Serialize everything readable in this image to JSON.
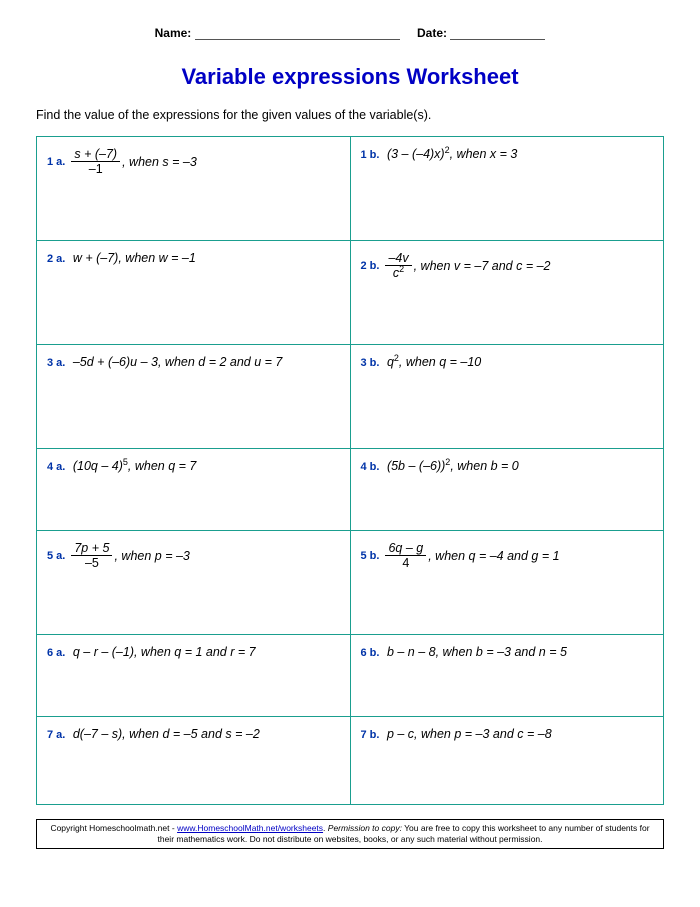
{
  "header": {
    "name_label": "Name:",
    "date_label": "Date:"
  },
  "title": "Variable expressions Worksheet",
  "instructions": "Find the value of the expressions for the given values of the variable(s).",
  "title_color": "#0000c4",
  "border_color": "#1a9e8f",
  "pnum_color": "#0033a8",
  "problems": [
    {
      "a_num": "1 a.",
      "a_frac_num": "s + (–7)",
      "a_frac_den": "–1",
      "a_cond": " , when s = –3",
      "b_num": "1 b.",
      "b_expr": "(3 – (–4)x)",
      "b_sup": "2",
      "b_cond": ", when x = 3"
    },
    {
      "a_num": "2 a.",
      "a_expr": "w + (–7), when w = –1",
      "b_num": "2 b.",
      "b_frac_num": "–4v",
      "b_frac_den_base": "c",
      "b_frac_den_sup": "2",
      "b_cond": " , when v = –7 and c = –2"
    },
    {
      "a_num": "3 a.",
      "a_expr": "–5d + (–6)u – 3, when d = 2 and u = 7",
      "b_num": "3 b.",
      "b_base": "q",
      "b_sup": "2",
      "b_cond": ", when q = –10"
    },
    {
      "a_num": "4 a.",
      "a_paren": "(10q – 4)",
      "a_sup": "5",
      "a_cond": ", when q = 7",
      "b_num": "4 b.",
      "b_paren": "(5b – (–6))",
      "b_sup": "2",
      "b_cond": ", when b = 0"
    },
    {
      "a_num": "5 a.",
      "a_frac_num": "7p + 5",
      "a_frac_den": "–5",
      "a_cond": " , when p = –3",
      "b_num": "5 b.",
      "b_frac_num": "6q – g",
      "b_frac_den": "4",
      "b_cond": " , when q = –4 and g = 1"
    },
    {
      "a_num": "6 a.",
      "a_expr": "q – r – (–1), when q = 1 and r = 7",
      "b_num": "6 b.",
      "b_expr": "b – n – 8, when b = –3 and n = 5"
    },
    {
      "a_num": "7 a.",
      "a_expr": "d(–7 – s), when d = –5 and s = –2",
      "b_num": "7 b.",
      "b_expr": "p – c, when p = –3 and c = –8"
    }
  ],
  "footer": {
    "copyright": "Copyright Homeschoolmath.net - ",
    "link_text": "www.HomeschoolMath.net/worksheets",
    "permission_label": "Permission to copy:",
    "permission_text": " You are free to copy this worksheet to any number of students for their mathematics work. Do not distribute on websites, books, or any such material without permission."
  }
}
